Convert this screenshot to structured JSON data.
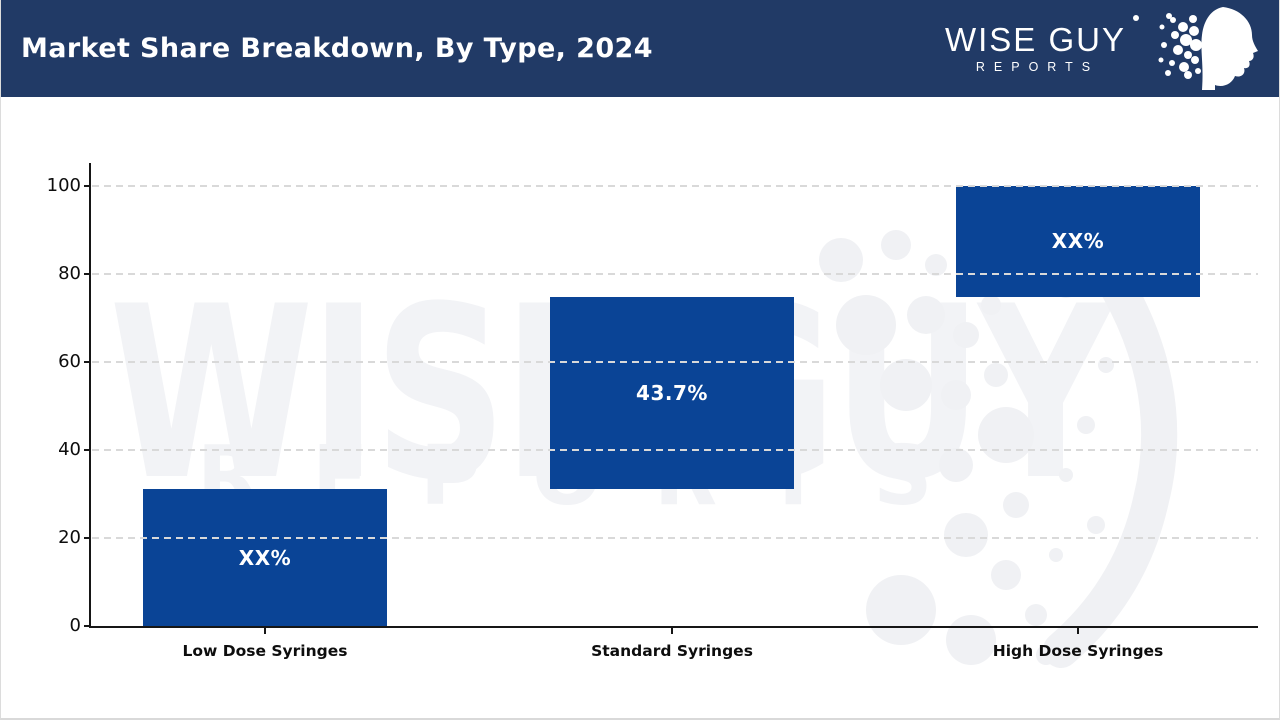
{
  "header": {
    "title": "Market Share Breakdown, By Type, 2024",
    "bg_color": "#213a66",
    "logo": {
      "line1": "WISE GUY",
      "line2": "REPORTS"
    }
  },
  "watermark": {
    "line1": "WISE GUY",
    "line2": "REPORTS"
  },
  "colors": {
    "bar": "#0a4496",
    "gridline": "#d9d9d9",
    "axis": "#161616",
    "header_bg": "#213a66",
    "watermark": "#f2f3f6"
  },
  "chart_data": {
    "type": "bar",
    "subtype": "waterfall",
    "title": "Market Share Breakdown, By Type, 2024",
    "categories": [
      "Low Dose Syringes",
      "Standard Syringes",
      "High Dose Syringes"
    ],
    "bars": [
      {
        "category": "Low Dose Syringes",
        "start": 0,
        "end": 31.1,
        "size": 31.1,
        "label": "XX%"
      },
      {
        "category": "Standard Syringes",
        "start": 31.1,
        "end": 74.8,
        "size": 43.7,
        "label": "43.7%"
      },
      {
        "category": "High Dose Syringes",
        "start": 74.8,
        "end": 100,
        "size": 25.2,
        "label": "XX%"
      }
    ],
    "yticks": [
      0,
      20,
      40,
      60,
      80,
      100
    ],
    "ylim": [
      0,
      100
    ],
    "xlabel": "",
    "ylabel": "",
    "grid": true,
    "grid_style": "dashed",
    "legend": false,
    "bar_color": "#0a4496",
    "value_label_color": "#ffffff"
  }
}
